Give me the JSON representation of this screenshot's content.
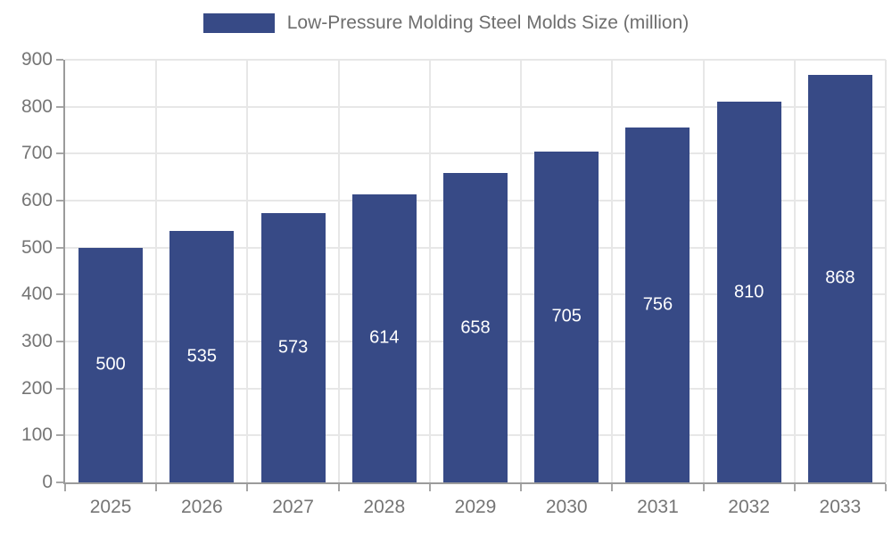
{
  "chart_data": {
    "type": "bar",
    "title": "Low-Pressure Molding Steel Molds Size (million)",
    "categories": [
      "2025",
      "2026",
      "2027",
      "2028",
      "2029",
      "2030",
      "2031",
      "2032",
      "2033"
    ],
    "values": [
      500,
      535,
      573,
      614,
      658,
      705,
      756,
      810,
      868
    ],
    "xlabel": "",
    "ylabel": "",
    "ylim": [
      0,
      900
    ],
    "yticks": [
      0,
      100,
      200,
      300,
      400,
      500,
      600,
      700,
      800,
      900
    ],
    "grid": true,
    "legend_position": "top-center",
    "bar_color": "#374a86",
    "bar_label_color": "#ffffff",
    "grid_color": "#e7e7e7",
    "axis_color": "#9b9b9b",
    "tick_color": "#a6a6a6",
    "tick_label_color": "#757575",
    "legend_text_color": "#6e6e6e"
  }
}
